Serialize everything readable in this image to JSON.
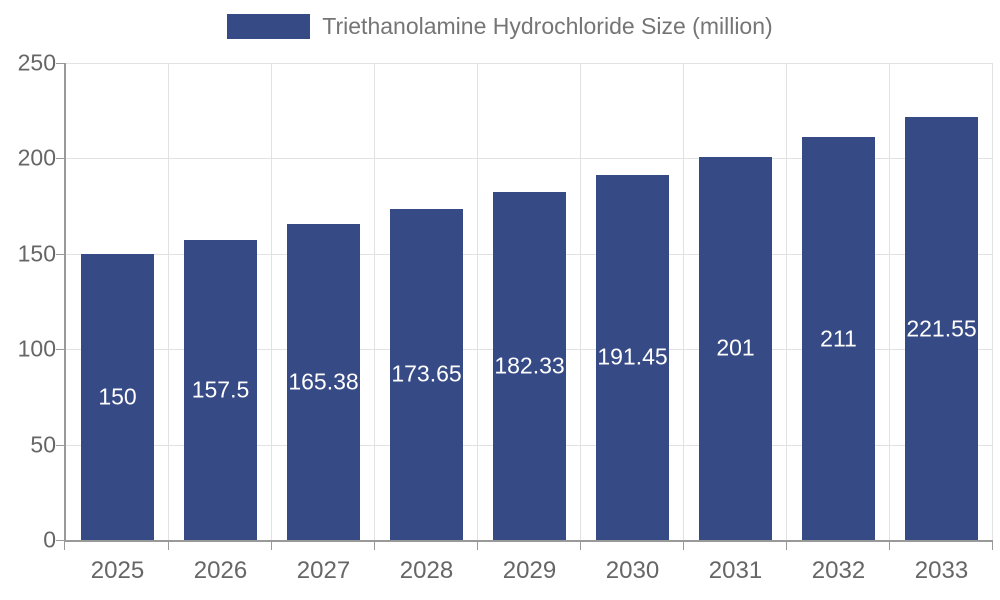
{
  "chart_data": {
    "type": "bar",
    "title": "Triethanolamine Hydrochloride Size (million)",
    "categories": [
      "2025",
      "2026",
      "2027",
      "2028",
      "2029",
      "2030",
      "2031",
      "2032",
      "2033"
    ],
    "values": [
      150,
      157.5,
      165.38,
      173.65,
      182.33,
      191.45,
      201,
      211,
      221.55
    ],
    "value_labels": [
      "150",
      "157.5",
      "165.38",
      "173.65",
      "182.33",
      "191.45",
      "201",
      "211",
      "221.55"
    ],
    "xlabel": "",
    "ylabel": "",
    "ylim": [
      0,
      250
    ],
    "y_ticks": [
      0,
      50,
      100,
      150,
      200,
      250
    ],
    "grid": "on",
    "legend_position": "top-center"
  },
  "legend": {
    "series_label": "Triethanolamine Hydrochloride Size (million)"
  },
  "colors": {
    "bar": "#364a85",
    "axis_line": "#999999",
    "gridline": "#e2e2e2",
    "tick_label": "#666666",
    "legend_text": "#757575",
    "value_label": "#ffffff",
    "background": "#ffffff"
  }
}
